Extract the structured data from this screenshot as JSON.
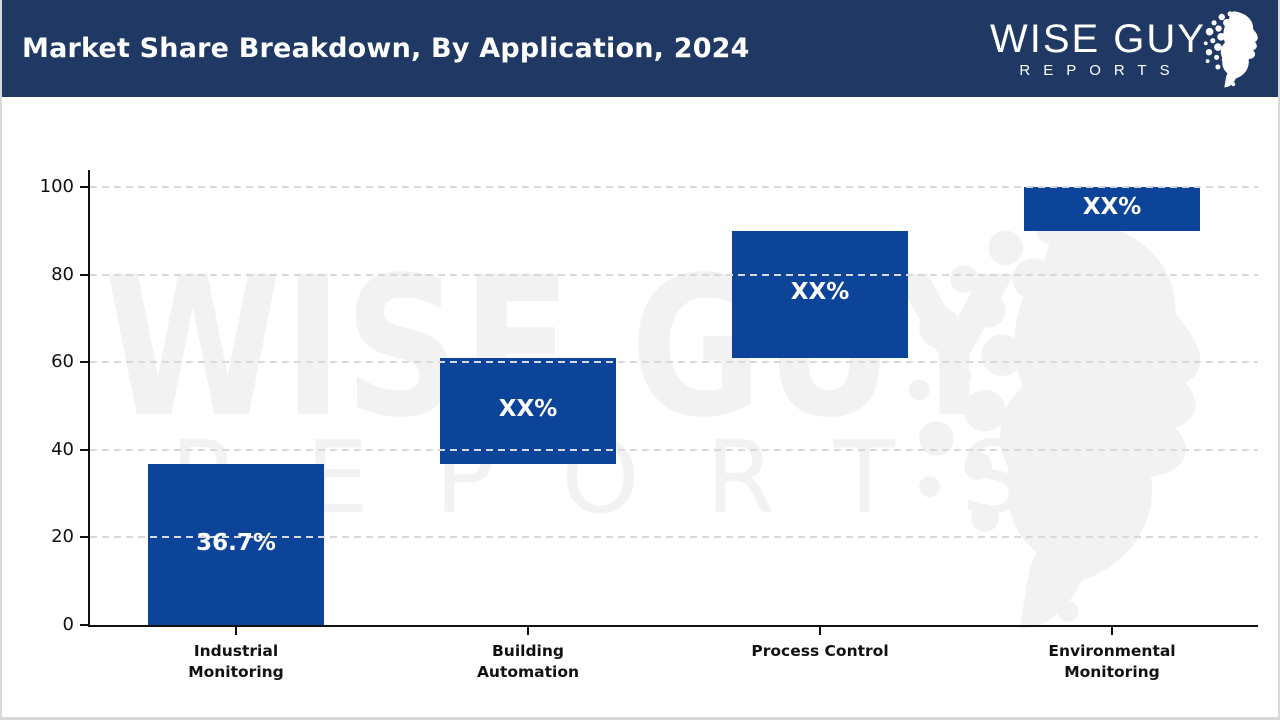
{
  "header": {
    "title": "Market Share Breakdown, By Application, 2024",
    "logo": {
      "line1": "WISE GUY",
      "line2": "REPORTS"
    }
  },
  "watermark": {
    "line1": "WISE GUY",
    "line2": "REPORTS"
  },
  "colors": {
    "header_bg": "#1f3864",
    "bar": "#0c4499",
    "bar_label": "#ffffff",
    "grid": "#d9d9d9",
    "axis": "#111111",
    "watermark": "#f2f2f2"
  },
  "chart_data": {
    "type": "bar",
    "variant": "waterfall",
    "title": "Market Share Breakdown, By Application, 2024",
    "categories": [
      "Industrial\nMonitoring",
      "Building\nAutomation",
      "Process Control",
      "Environmental\nMonitoring"
    ],
    "segments": [
      {
        "category": "Industrial Monitoring",
        "start": 0,
        "end": 36.7,
        "label": "36.7%"
      },
      {
        "category": "Building Automation",
        "start": 36.7,
        "end": 61,
        "label": "XX%"
      },
      {
        "category": "Process Control",
        "start": 61,
        "end": 90,
        "label": "XX%"
      },
      {
        "category": "Environmental Monitoring",
        "start": 90,
        "end": 100,
        "label": "XX%"
      }
    ],
    "yticks": [
      0,
      20,
      40,
      60,
      80,
      100
    ],
    "ylim": [
      0,
      105
    ],
    "xlabel": "",
    "ylabel": "",
    "grid": "dashed-horizontal",
    "legend": "none"
  }
}
